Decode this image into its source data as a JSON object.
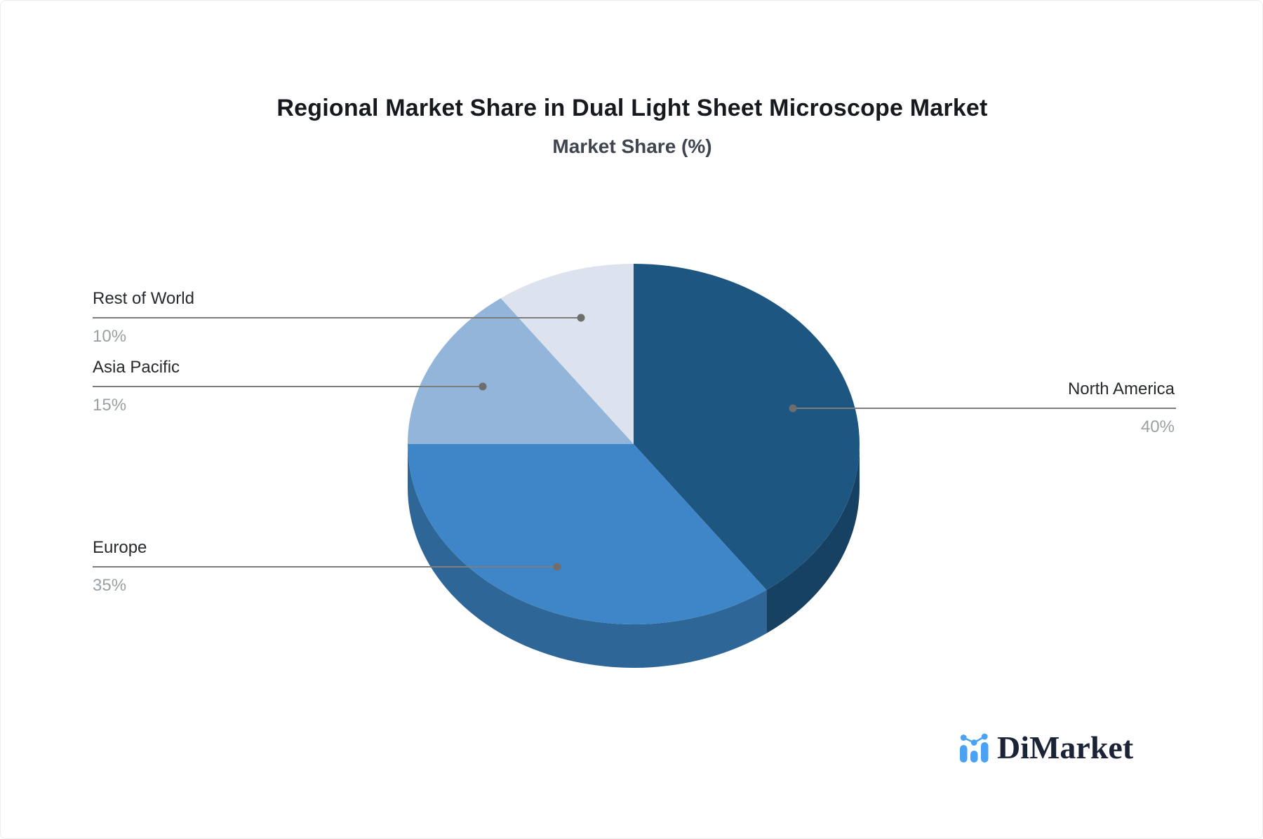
{
  "chart_data": {
    "type": "pie",
    "style": "3d",
    "title": "Regional Market Share in Dual Light Sheet Microscope Market",
    "subtitle": "Market Share (%)",
    "unit": "%",
    "start_angle": "top",
    "direction": "clockwise",
    "legend_position": "none",
    "label_style": "callout-leader-lines",
    "categories": [
      "North America",
      "Europe",
      "Asia Pacific",
      "Rest of World"
    ],
    "values": [
      40,
      35,
      15,
      10
    ],
    "colors": [
      "#1E5682",
      "#3E86C8",
      "#92B5D9",
      "#DCE3EE"
    ],
    "callouts": [
      {
        "name": "North America",
        "pct": "40%"
      },
      {
        "name": "Europe",
        "pct": "35%"
      },
      {
        "name": "Asia Pacific",
        "pct": "15%"
      },
      {
        "name": "Rest of World",
        "pct": "10%"
      }
    ]
  },
  "branding": {
    "logo_text": "DiMarket",
    "logo_icon": "bar-chart-trend-icon",
    "logo_icon_color": "#4AA2F4",
    "logo_text_color": "#1B2337"
  },
  "palette": {
    "leader_line": "#7d7d7d",
    "leader_dot": "#6e6e6e",
    "label_name": "#26292d",
    "label_pct": "#9aa0a6"
  }
}
